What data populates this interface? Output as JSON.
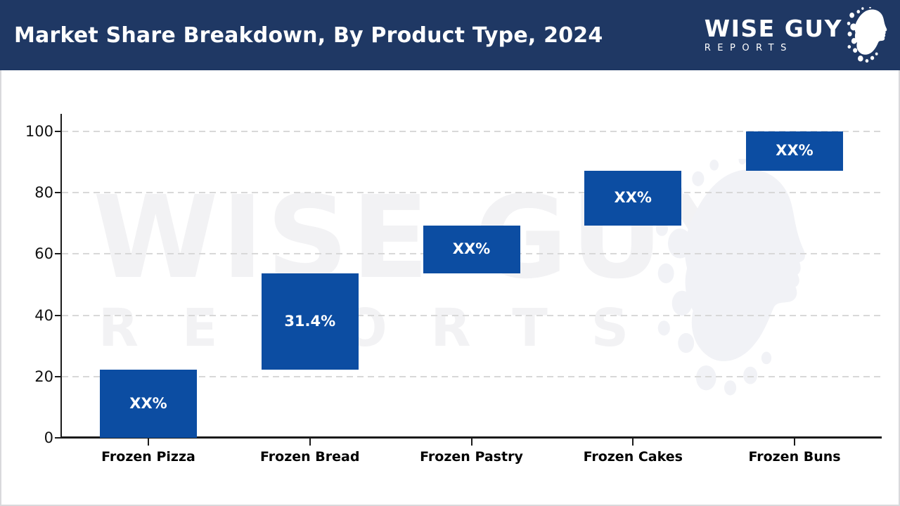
{
  "header": {
    "title": "Market Share Breakdown, By Product Type, 2024",
    "logo": {
      "line1": "WISE GUY",
      "line2": "REPORTS"
    }
  },
  "watermark": {
    "line1": "WISE GUY",
    "line2": "REPORTS"
  },
  "chart_data": {
    "type": "bar",
    "subtype": "waterfall",
    "title": "Market Share Breakdown, By Product Type, 2024",
    "categories": [
      "Frozen Pizza",
      "Frozen Bread",
      "Frozen Pastry",
      "Frozen Cakes",
      "Frozen Buns"
    ],
    "segments": [
      {
        "category": "Frozen Pizza",
        "start": 0,
        "end": 22.3,
        "label": "XX%"
      },
      {
        "category": "Frozen Bread",
        "start": 22.3,
        "end": 53.7,
        "label": "31.4%"
      },
      {
        "category": "Frozen Pastry",
        "start": 53.7,
        "end": 69.3,
        "label": "XX%"
      },
      {
        "category": "Frozen Cakes",
        "start": 69.3,
        "end": 87.2,
        "label": "XX%"
      },
      {
        "category": "Frozen Buns",
        "start": 87.2,
        "end": 100,
        "label": "XX%"
      }
    ],
    "ylim": [
      0,
      100
    ],
    "yticks": [
      0,
      20,
      40,
      60,
      80,
      100
    ],
    "xlabel": "",
    "ylabel": "",
    "grid": "horizontal-dashed",
    "legend": "none",
    "colors": {
      "bar": "#0C4DA2",
      "bar_label": "#FFFFFF",
      "grid": "#D8D8D8",
      "axis": "#1A1A1A",
      "header_bg": "#1F3864",
      "watermark": "#F2F2F4"
    }
  }
}
